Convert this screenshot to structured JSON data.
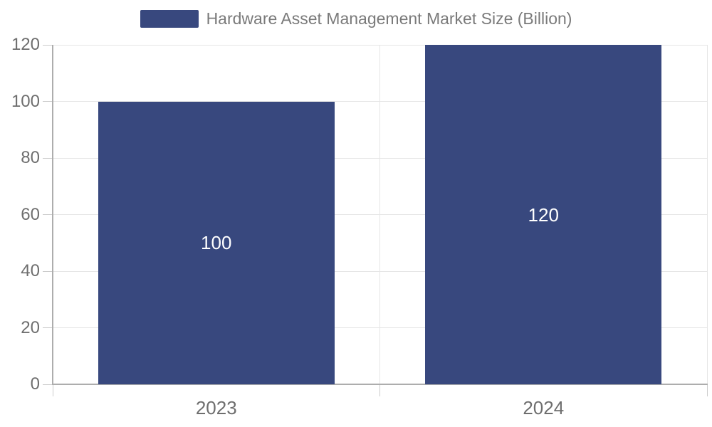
{
  "chart_data": {
    "type": "bar",
    "title": "Hardware Asset Management Market Size (Billion)",
    "categories": [
      "2023",
      "2024"
    ],
    "values": [
      100,
      120
    ],
    "bar_value_labels": [
      "100",
      "120"
    ],
    "xlabel": "",
    "ylabel": "",
    "ylim": [
      0,
      120
    ],
    "yticks": [
      0,
      20,
      40,
      60,
      80,
      100,
      120
    ],
    "grid": true,
    "legend_position": "top-center",
    "legend_entries": [
      "Hardware Asset Management Market Size (Billion)"
    ],
    "colors": {
      "bar": "#38487e",
      "bar_label": "#ffffff",
      "legend_text": "#7a7a7a",
      "axis_text": "#6e6e6e",
      "gridline": "#e6e6e6",
      "axis_line": "#adadad",
      "tick": "#cccccc",
      "background": "#ffffff"
    }
  }
}
